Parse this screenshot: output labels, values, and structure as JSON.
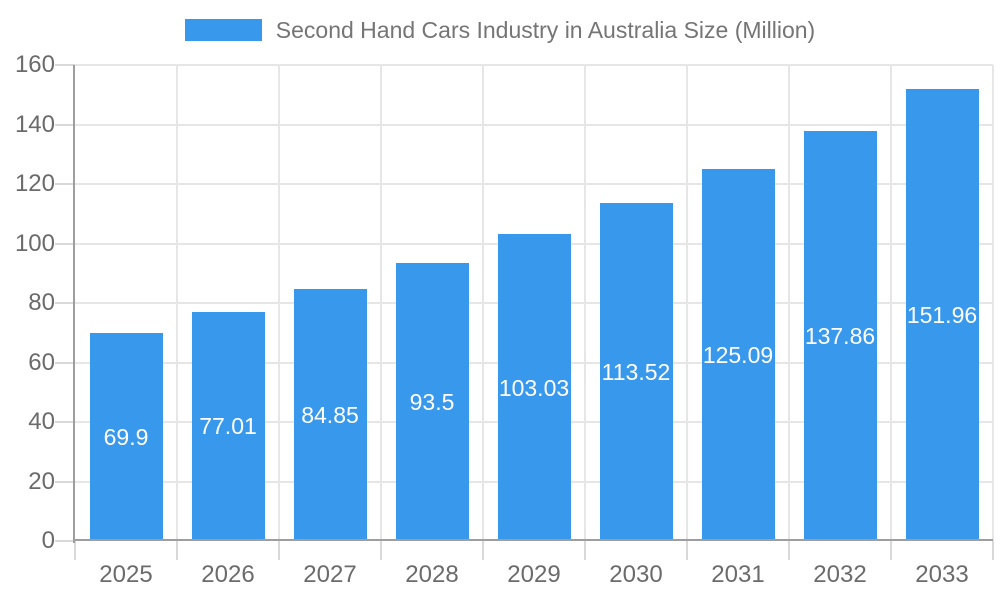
{
  "legend": {
    "label": "Second Hand Cars Industry in Australia Size (Million)"
  },
  "chart_data": {
    "type": "bar",
    "title": "Second Hand Cars Industry in Australia Size (Million)",
    "categories": [
      "2025",
      "2026",
      "2027",
      "2028",
      "2029",
      "2030",
      "2031",
      "2032",
      "2033"
    ],
    "values": [
      69.9,
      77.01,
      84.85,
      93.5,
      103.03,
      113.52,
      125.09,
      137.86,
      151.96
    ],
    "value_labels": [
      "69.9",
      "77.01",
      "84.85",
      "93.5",
      "103.03",
      "113.52",
      "125.09",
      "137.86",
      "151.96"
    ],
    "xlabel": "",
    "ylabel": "",
    "ylim": [
      0,
      160
    ],
    "y_ticks": [
      0,
      20,
      40,
      60,
      80,
      100,
      120,
      140,
      160
    ],
    "grid": true,
    "legend_position": "top",
    "data_labels_position": "center-inside",
    "colors": {
      "bar": "#3898ec",
      "axis": "#9e9e9e",
      "gridline": "#e6e6e6",
      "tick": "#d9d9d9",
      "tick_label": "#6b6b6b",
      "legend_text": "#757575",
      "data_label": "#ffffff"
    }
  }
}
